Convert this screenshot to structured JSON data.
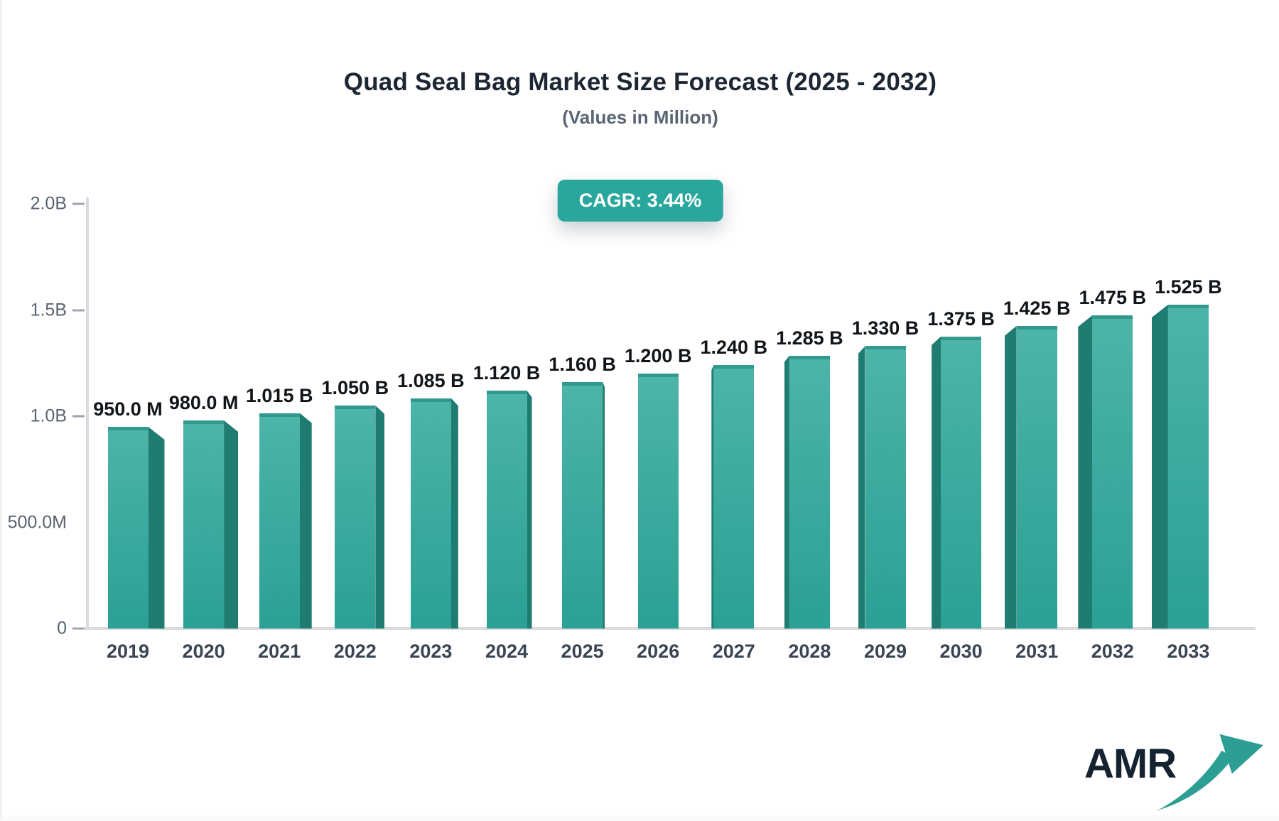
{
  "page": {
    "background": "#ffffff"
  },
  "title": "Quad Seal Bag Market Size Forecast (2025 - 2032)",
  "subtitle": "(Values in Million)",
  "cagr_badge": {
    "label": "CAGR: 3.44%",
    "background": "#2aa79d",
    "text_color": "#ffffff"
  },
  "watermark": {
    "text": "AMR",
    "text_color": "#152230",
    "arrow_color": "#2d9e94"
  },
  "chart_data": {
    "type": "bar",
    "title": "Quad Seal Bag Market Size Forecast (2025 - 2032)",
    "subtitle": "(Values in Million)",
    "cagr_label": "CAGR: 3.44%",
    "categories": [
      "2019",
      "2020",
      "2021",
      "2022",
      "2023",
      "2024",
      "2025",
      "2026",
      "2027",
      "2028",
      "2029",
      "2030",
      "2031",
      "2032",
      "2033"
    ],
    "values_millions": [
      950,
      980,
      1015,
      1050,
      1085,
      1120,
      1160,
      1200,
      1240,
      1285,
      1330,
      1375,
      1425,
      1475,
      1525
    ],
    "value_labels": [
      "950.0 M",
      "980.0 M",
      "1.015 B",
      "1.050 B",
      "1.085 B",
      "1.120 B",
      "1.160 B",
      "1.200 B",
      "1.240 B",
      "1.285 B",
      "1.330 B",
      "1.375 B",
      "1.425 B",
      "1.475 B",
      "1.525 B"
    ],
    "xlabel": "",
    "ylabel": "",
    "ylim_millions": [
      0,
      2000
    ],
    "y_ticks": [
      {
        "label": "2.0B",
        "value_millions": 2000,
        "dash": true
      },
      {
        "label": "1.5B",
        "value_millions": 1500,
        "dash": true
      },
      {
        "label": "1.0B",
        "value_millions": 1000,
        "dash": true
      },
      {
        "label": "500.0M",
        "value_millions": 500,
        "dash": false
      },
      {
        "label": "0",
        "value_millions": 0,
        "dash": true
      }
    ],
    "grid": "off",
    "legend": "none",
    "bar_style": {
      "front_top_color": "#4db4a8",
      "front_bottom_color": "#2ba094",
      "top_edge_color": "#31998d",
      "side_color": "#1f7c71",
      "perspective": "3d, shaded side faces point toward chart center"
    }
  }
}
